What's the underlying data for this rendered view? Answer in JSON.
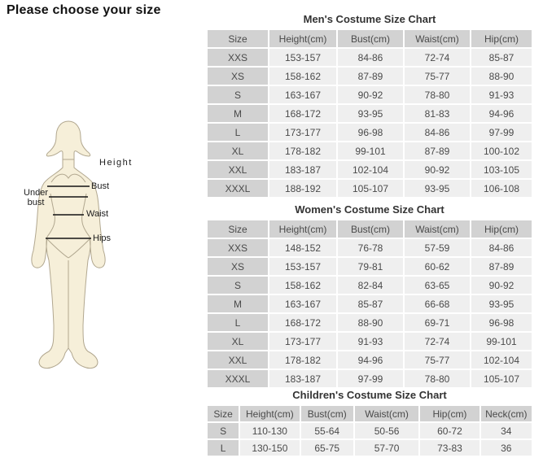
{
  "page": {
    "heading": "Please choose your size"
  },
  "figure": {
    "labels": {
      "height": "Height",
      "bust": "Bust",
      "under_bust": "Under bust",
      "waist": "Waist",
      "hips": "Hips"
    },
    "colors": {
      "body_fill": "#f6efd9",
      "body_outline": "#b1a78f",
      "measure_line": "#141414"
    }
  },
  "colors": {
    "header_cell_bg": "#d2d2d2",
    "data_cell_bg": "#efefef",
    "cell_text": "#4a4a4a",
    "title_text": "#333333"
  },
  "tables": [
    {
      "id": "mens",
      "title": "Men's Costume Size Chart",
      "columns": [
        "Size",
        "Height(cm)",
        "Bust(cm)",
        "Waist(cm)",
        "Hip(cm)"
      ],
      "rows": [
        [
          "XXS",
          "153-157",
          "84-86",
          "72-74",
          "85-87"
        ],
        [
          "XS",
          "158-162",
          "87-89",
          "75-77",
          "88-90"
        ],
        [
          "S",
          "163-167",
          "90-92",
          "78-80",
          "91-93"
        ],
        [
          "M",
          "168-172",
          "93-95",
          "81-83",
          "94-96"
        ],
        [
          "L",
          "173-177",
          "96-98",
          "84-86",
          "97-99"
        ],
        [
          "XL",
          "178-182",
          "99-101",
          "87-89",
          "100-102"
        ],
        [
          "XXL",
          "183-187",
          "102-104",
          "90-92",
          "103-105"
        ],
        [
          "XXXL",
          "188-192",
          "105-107",
          "93-95",
          "106-108"
        ]
      ]
    },
    {
      "id": "womens",
      "title": "Women's Costume Size Chart",
      "columns": [
        "Size",
        "Height(cm)",
        "Bust(cm)",
        "Waist(cm)",
        "Hip(cm)"
      ],
      "rows": [
        [
          "XXS",
          "148-152",
          "76-78",
          "57-59",
          "84-86"
        ],
        [
          "XS",
          "153-157",
          "79-81",
          "60-62",
          "87-89"
        ],
        [
          "S",
          "158-162",
          "82-84",
          "63-65",
          "90-92"
        ],
        [
          "M",
          "163-167",
          "85-87",
          "66-68",
          "93-95"
        ],
        [
          "L",
          "168-172",
          "88-90",
          "69-71",
          "96-98"
        ],
        [
          "XL",
          "173-177",
          "91-93",
          "72-74",
          "99-101"
        ],
        [
          "XXL",
          "178-182",
          "94-96",
          "75-77",
          "102-104"
        ],
        [
          "XXXL",
          "183-187",
          "97-99",
          "78-80",
          "105-107"
        ]
      ]
    },
    {
      "id": "childrens",
      "title": "Children's Costume Size Chart",
      "columns": [
        "Size",
        "Height(cm)",
        "Bust(cm)",
        "Waist(cm)",
        "Hip(cm)",
        "Neck(cm)"
      ],
      "rows": [
        [
          "S",
          "110-130",
          "55-64",
          "50-56",
          "60-72",
          "34"
        ],
        [
          "L",
          "130-150",
          "65-75",
          "57-70",
          "73-83",
          "36"
        ]
      ]
    }
  ]
}
